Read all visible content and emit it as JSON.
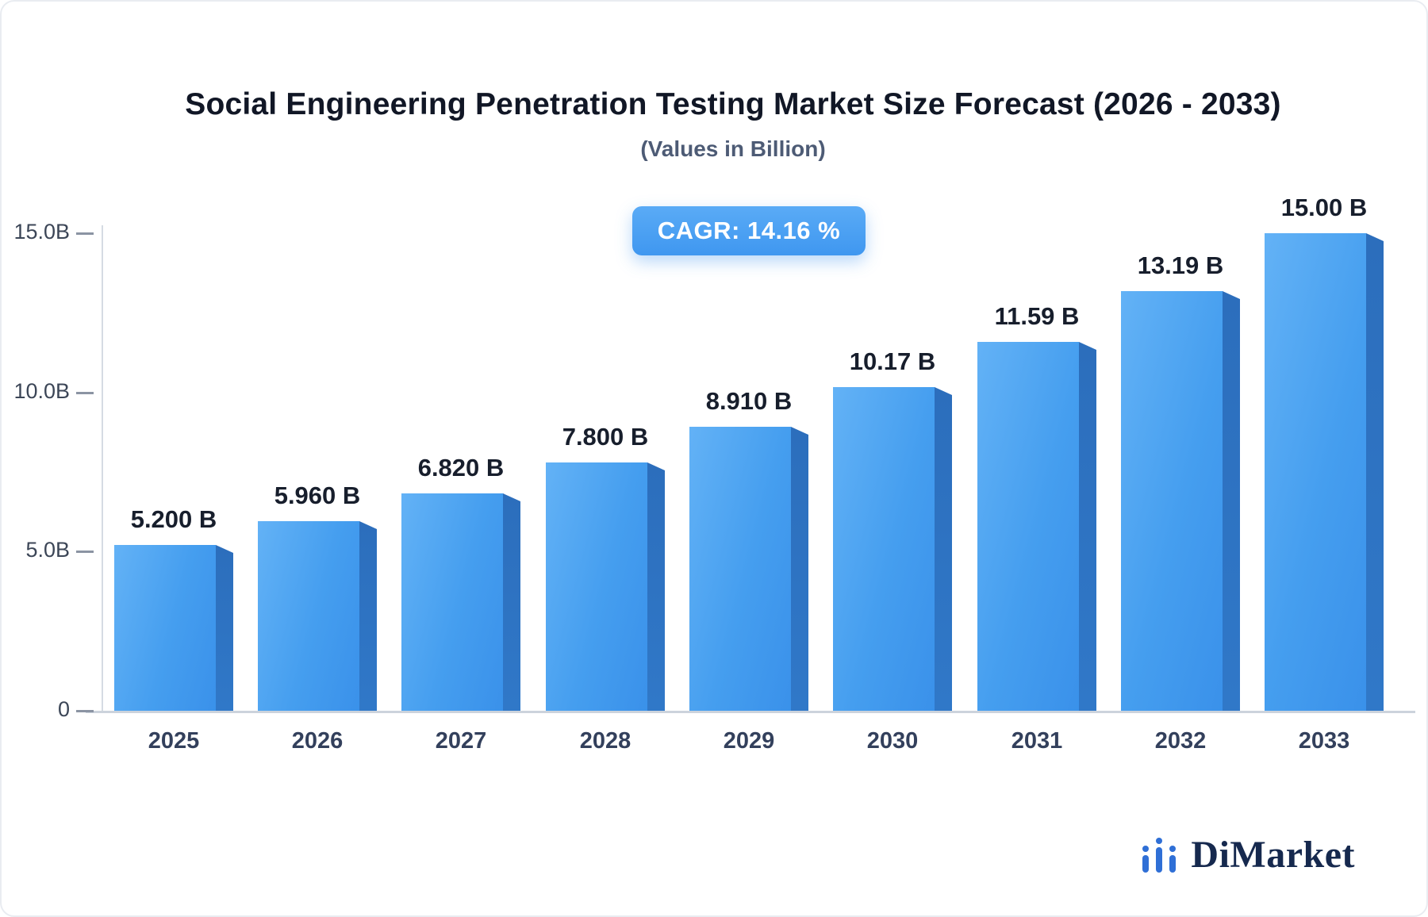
{
  "header": {
    "title": "Social Engineering Penetration Testing Market Size Forecast (2026 - 2033)",
    "subtitle": "(Values in Billion)"
  },
  "cagr_badge": {
    "label": "CAGR: 14.16 %"
  },
  "chart_data": {
    "type": "bar",
    "title": "Social Engineering Penetration Testing Market Size Forecast (2026 - 2033)",
    "subtitle": "(Values in Billion)",
    "cagr_percent": 14.16,
    "categories": [
      "2025",
      "2026",
      "2027",
      "2028",
      "2029",
      "2030",
      "2031",
      "2032",
      "2033"
    ],
    "values": [
      5.2,
      5.96,
      6.82,
      7.8,
      8.91,
      10.17,
      11.59,
      13.19,
      15.0
    ],
    "value_labels": [
      "5.200 B",
      "5.960 B",
      "6.820 B",
      "7.800 B",
      "8.910 B",
      "10.17 B",
      "11.59 B",
      "13.19 B",
      "15.00 B"
    ],
    "xlabel": "",
    "ylabel": "",
    "ylim": [
      0,
      15
    ],
    "yticks": [
      {
        "value": 0,
        "label": "0"
      },
      {
        "value": 5,
        "label": "5.0B"
      },
      {
        "value": 10,
        "label": "10.0B"
      },
      {
        "value": 15,
        "label": "15.0B"
      }
    ],
    "grid": false,
    "legend": false,
    "bar_color": "#459eef",
    "bar_side_color": "#2c6ebc",
    "axis_color": "#ccd3dc"
  },
  "footer": {
    "brand": "DiMarket",
    "logo_icon": "bar-chart-icon",
    "brand_color": "#16294e",
    "icon_color": "#2f6fd6"
  }
}
